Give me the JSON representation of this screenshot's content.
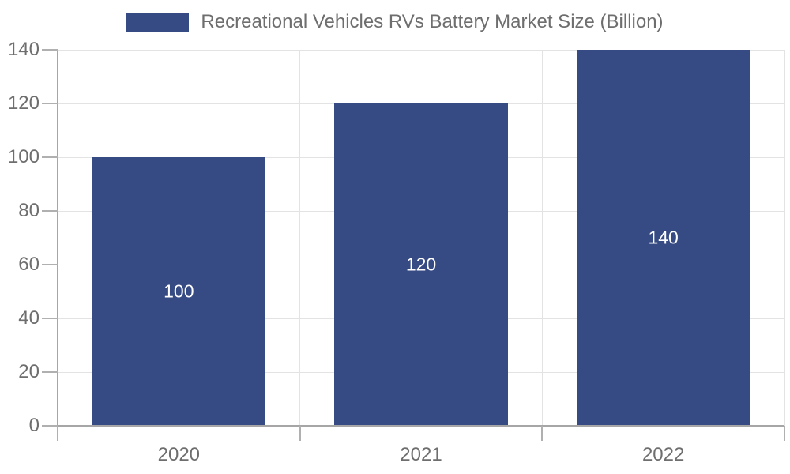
{
  "chart_data": {
    "type": "bar",
    "title": "",
    "legend": "Recreational Vehicles RVs Battery Market Size (Billion)",
    "legend_position": "top",
    "categories": [
      "2020",
      "2021",
      "2022"
    ],
    "values": [
      100,
      120,
      140
    ],
    "bar_labels": [
      "100",
      "120",
      "140"
    ],
    "xlabel": "",
    "ylabel": "",
    "ylim": [
      0,
      140
    ],
    "ytick_step": 20,
    "ytick_labels": [
      "0",
      "20",
      "40",
      "60",
      "80",
      "100",
      "120",
      "140"
    ],
    "grid": true,
    "colors": {
      "bar": "#364A83",
      "grid": "#e3e3e3",
      "axis": "#a6a6a6",
      "tick_mark": "#b0b0b0",
      "tick_text": "#6e6e6e",
      "bar_label_text": "#ffffff",
      "background": "#ffffff"
    }
  }
}
